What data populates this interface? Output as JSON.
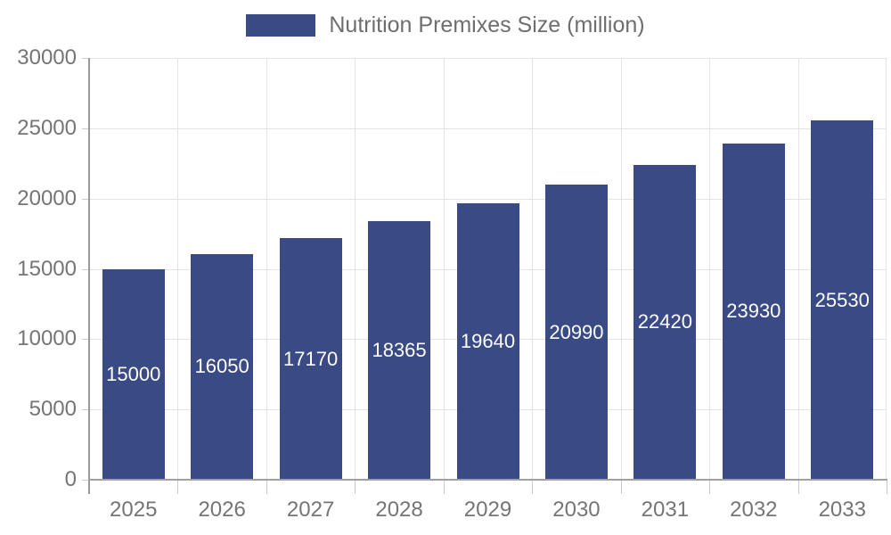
{
  "legend": {
    "label": "Nutrition Premixes Size (million)",
    "swatch_color": "#3A4A85"
  },
  "chart_data": {
    "type": "bar",
    "title": "Nutrition Premixes Size (million)",
    "categories": [
      "2025",
      "2026",
      "2027",
      "2028",
      "2029",
      "2030",
      "2031",
      "2032",
      "2033"
    ],
    "values": [
      15000,
      16050,
      17170,
      18365,
      19640,
      20990,
      22420,
      23930,
      25530
    ],
    "data_labels": [
      "15000",
      "16050",
      "17170",
      "18365",
      "19640",
      "20990",
      "22420",
      "23930",
      "25530"
    ],
    "xlabel": "",
    "ylabel": "",
    "ylim": [
      0,
      30000
    ],
    "y_ticks": [
      0,
      5000,
      10000,
      15000,
      20000,
      25000,
      30000
    ],
    "grid": true,
    "legend_position": "top-center",
    "bar_color": "#3A4A85",
    "data_label_color": "#ffffff",
    "tick_label_color": "#757575",
    "gridline_color": "#e3e3e3",
    "axis_line_color": "#999999"
  }
}
